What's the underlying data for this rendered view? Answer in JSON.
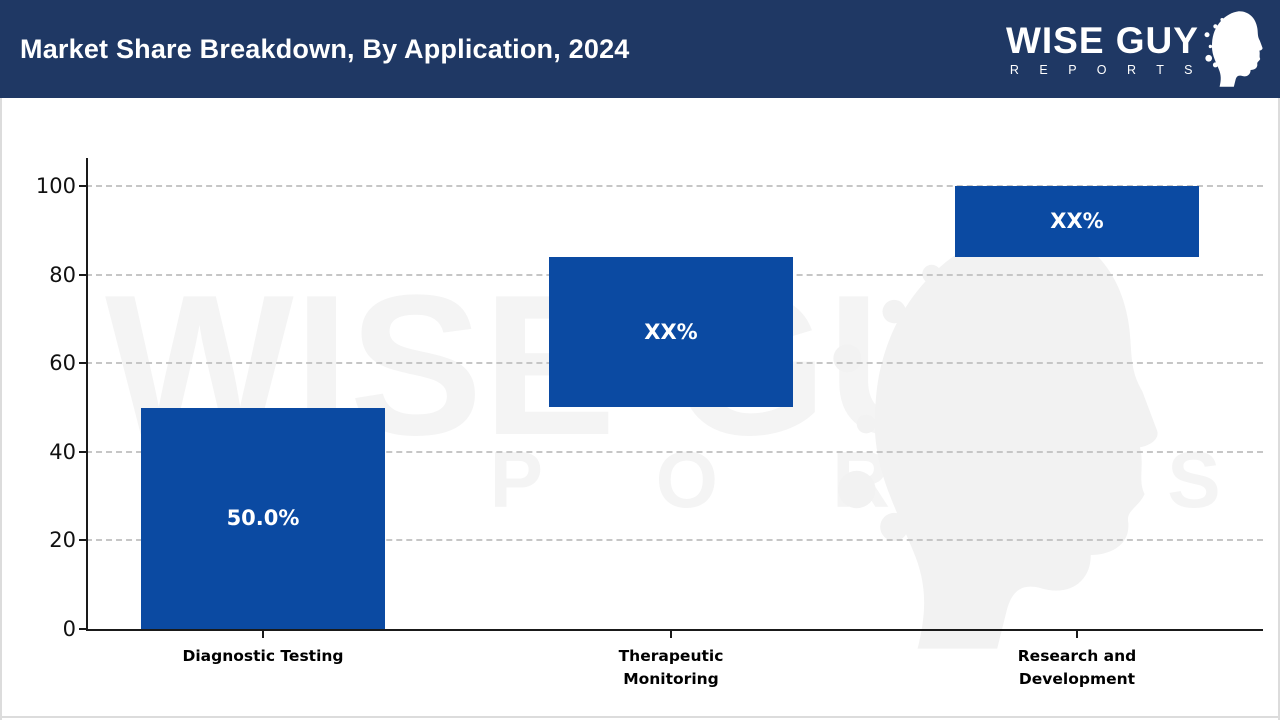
{
  "header": {
    "title": "Market Share Breakdown, By Application, 2024",
    "logo": {
      "line1": "WISE GUY",
      "line2": "R E P O R T S"
    }
  },
  "watermark": {
    "line1": "WISE GUY",
    "line2": "R E P O R T S"
  },
  "chart_data": {
    "type": "bar",
    "subtype": "stacked-cumulative-floating-segments",
    "title": "Market Share Breakdown, By Application, 2024",
    "categories": [
      "Diagnostic Testing",
      "Therapeutic Monitoring",
      "Research and Development"
    ],
    "category_label_lines": [
      [
        "Diagnostic Testing"
      ],
      [
        "Therapeutic",
        "Monitoring"
      ],
      [
        "Research and",
        "Development"
      ]
    ],
    "bar_labels": [
      "50.0%",
      "XX%",
      "XX%"
    ],
    "segments": [
      {
        "from": 0,
        "to": 50
      },
      {
        "from": 50,
        "to": 84
      },
      {
        "from": 84,
        "to": 100
      }
    ],
    "values_pct": [
      50,
      34,
      16
    ],
    "ylim": [
      0,
      100
    ],
    "yticks": [
      0,
      20,
      40,
      60,
      80,
      100
    ],
    "grid": "horizontal-dashed",
    "legend": "none"
  },
  "colors": {
    "header_bg": "#1f3864",
    "bar": "#0b4aa2",
    "grid": "#c6c6c6",
    "axis": "#1a1a1a",
    "watermark": "#f4f4f4"
  }
}
